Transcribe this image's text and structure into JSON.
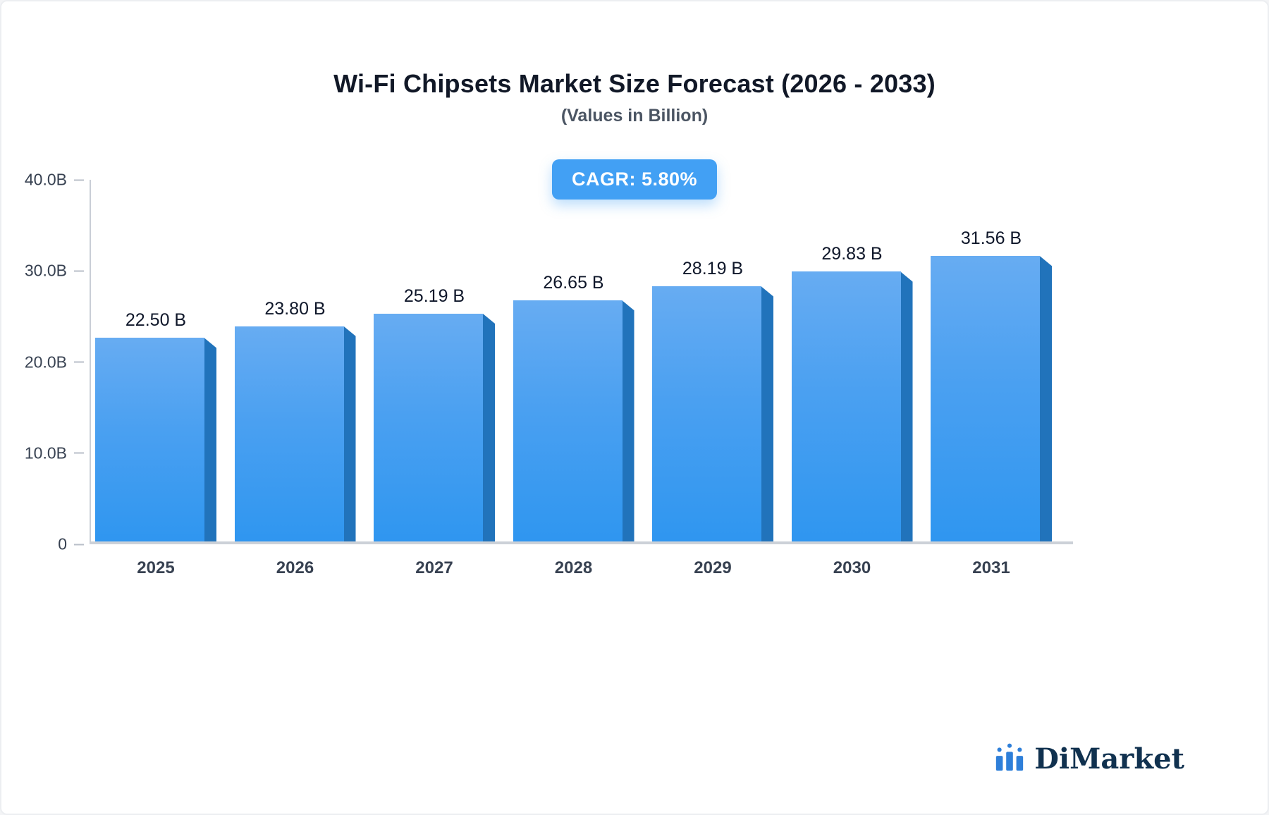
{
  "title": "Wi-Fi Chipsets Market Size Forecast (2026 - 2033)",
  "subtitle": "(Values in Billion)",
  "badge": {
    "label": "CAGR: 5.80%",
    "color": "#42a0f4"
  },
  "chart_data": {
    "type": "bar",
    "categories": [
      "2025",
      "2026",
      "2027",
      "2028",
      "2029",
      "2030",
      "2031"
    ],
    "values": [
      22.5,
      23.8,
      25.19,
      26.65,
      28.19,
      29.83,
      31.56
    ],
    "value_labels": [
      "22.50 B",
      "23.80 B",
      "25.19 B",
      "26.65 B",
      "28.19 B",
      "29.83 B",
      "31.56 B"
    ],
    "title": "Wi-Fi Chipsets Market Size Forecast (2026 - 2033)",
    "subtitle": "(Values in Billion)",
    "xlabel": "",
    "ylabel": "",
    "ylim": [
      0,
      40
    ],
    "yticks": [
      {
        "value": 40,
        "label": "40.0B"
      },
      {
        "value": 30,
        "label": "30.0B"
      },
      {
        "value": 20,
        "label": "20.0B"
      },
      {
        "value": 10,
        "label": "10.0B"
      },
      {
        "value": 0,
        "label": "0"
      }
    ],
    "grid": false,
    "legend": false,
    "bar_color_top": "#67acf2",
    "bar_color_bottom": "#2f96f0",
    "bar_side_color": "#2173bb"
  },
  "logo": {
    "text": "DiMarket",
    "icon": "bar-chart-icon",
    "color": "#2e7fd9"
  }
}
